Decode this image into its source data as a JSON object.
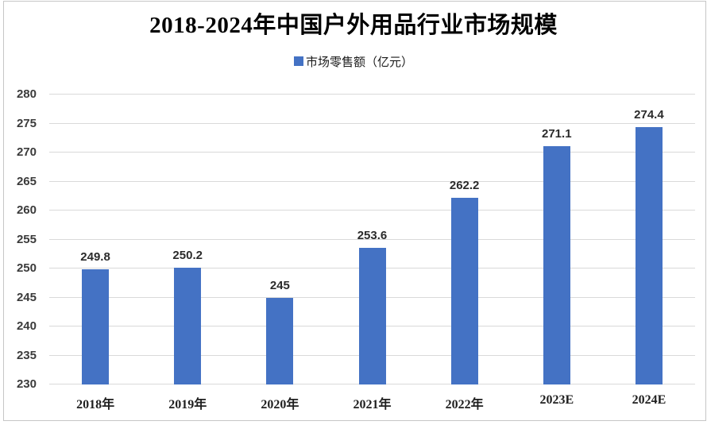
{
  "page": {
    "background": "#ffffff",
    "frame_border_color": "#c6c6c6"
  },
  "chart_data": {
    "type": "bar",
    "title": "2018-2024年中国户外用品行业市场规模",
    "legend": [
      {
        "label": "市场零售额（亿元）",
        "color": "#4472C4"
      }
    ],
    "legend_position": "top",
    "categories": [
      "2018年",
      "2019年",
      "2020年",
      "2021年",
      "2022年",
      "2023E",
      "2024E"
    ],
    "series": [
      {
        "name": "市场零售额（亿元）",
        "values": [
          249.8,
          250.2,
          245,
          253.6,
          262.2,
          271.1,
          274.4
        ]
      }
    ],
    "value_labels": [
      "249.8",
      "250.2",
      "245",
      "253.6",
      "262.2",
      "271.1",
      "274.4"
    ],
    "xlabel": "",
    "ylabel": "",
    "ylim": [
      230,
      280
    ],
    "ytick_step": 5,
    "yticks": [
      230,
      235,
      240,
      245,
      250,
      255,
      260,
      265,
      270,
      275,
      280
    ],
    "grid": true,
    "colors": {
      "bar": "#4472C4",
      "gridline": "#d9d9d9",
      "y_tick_text": "#3b3b3b",
      "x_tick_text": "#1f1f1f",
      "value_label_text": "#2b2b2b",
      "title_text": "#000000"
    }
  }
}
